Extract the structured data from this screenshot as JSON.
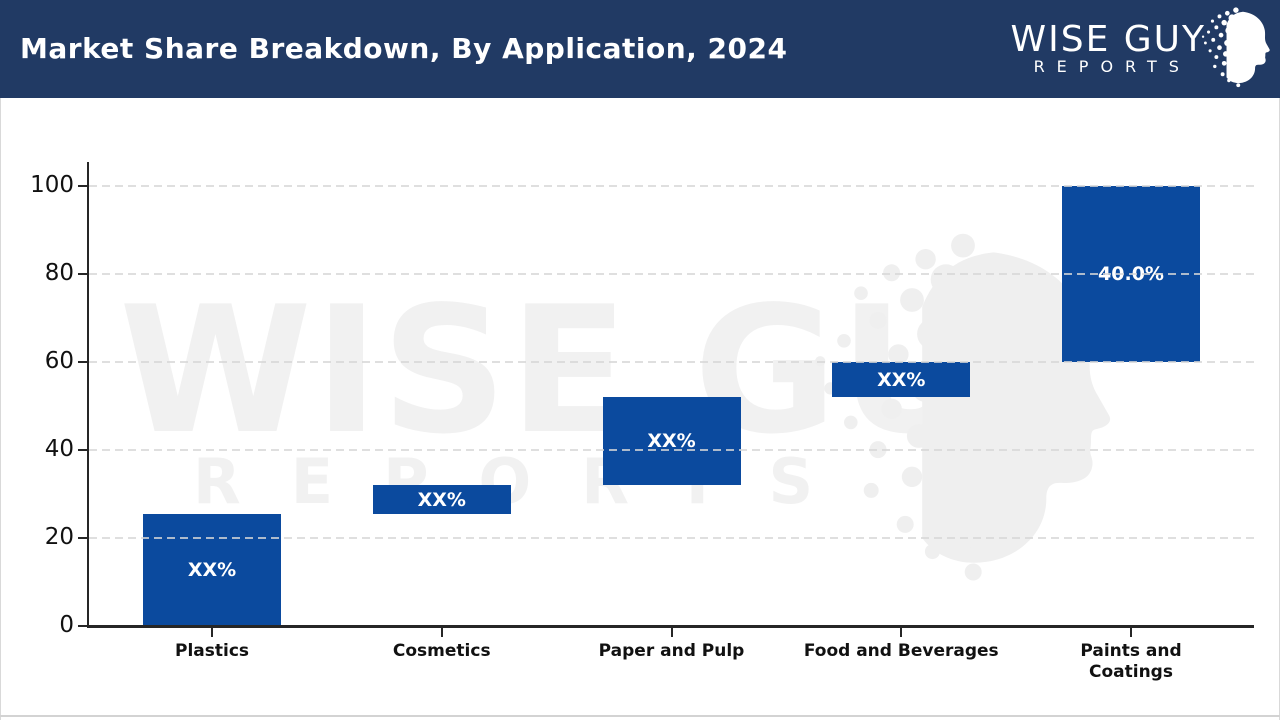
{
  "header": {
    "title": "Market Share Breakdown, By Application, 2024",
    "logo": {
      "brand": "WISE GUY",
      "sub": "REPORTS"
    }
  },
  "watermark": {
    "brand": "WISE GUY",
    "sub": "REPORTS"
  },
  "colors": {
    "header_bg": "#213a64",
    "bar": "#0b4a9e",
    "axis": "#262626",
    "gridline": "#d7d7d7",
    "watermark": "#f1f1f1"
  },
  "chart_data": {
    "type": "bar",
    "subtype": "waterfall",
    "title": "Market Share Breakdown, By Application, 2024",
    "categories": [
      "Plastics",
      "Cosmetics",
      "Paper and Pulp",
      "Food and Beverages",
      "Paints and Coatings"
    ],
    "categories_display": [
      "Plastics",
      "Cosmetics",
      "Paper and Pulp",
      "Food and Beverages",
      "Paints and\nCoatings"
    ],
    "segments": [
      {
        "category": "Plastics",
        "start": 0,
        "end": 25.4,
        "label": "XX%"
      },
      {
        "category": "Cosmetics",
        "start": 25.4,
        "end": 32,
        "label": "XX%"
      },
      {
        "category": "Paper and Pulp",
        "start": 32,
        "end": 52,
        "label": "XX%"
      },
      {
        "category": "Food and Beverages",
        "start": 52,
        "end": 60,
        "label": "XX%"
      },
      {
        "category": "Paints and Coatings",
        "start": 60,
        "end": 100,
        "label": "40.0%"
      }
    ],
    "y_ticks": [
      0,
      20,
      40,
      60,
      80,
      100
    ],
    "ylim": [
      0,
      105
    ],
    "xlabel": "",
    "ylabel": "",
    "grid": "horizontal-dashed",
    "legend": "none",
    "bar_color": "#0b4a9e",
    "bar_label_color": "#ffffff"
  }
}
